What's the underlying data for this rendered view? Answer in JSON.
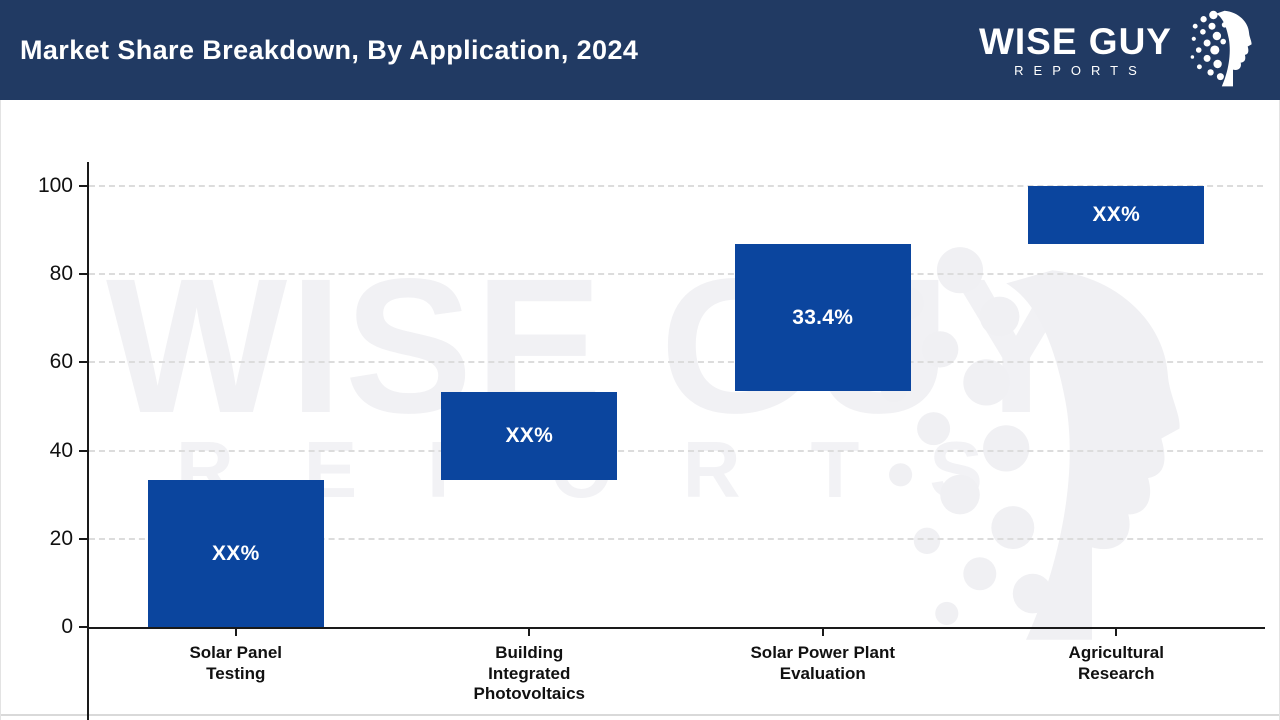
{
  "header": {
    "title": "Market Share Breakdown, By Application, 2024",
    "logo": {
      "line1": "WISE GUY",
      "line2": "REPORTS"
    }
  },
  "watermark": {
    "line1": "WISE GUY",
    "line2": "REPORTS"
  },
  "colors": {
    "header_bg": "#213a63",
    "bar": "#0b459e",
    "bar_label": "#ffffff",
    "axis": "#1a1a1a",
    "gridline": "#dcdcdc",
    "watermark": "#f1f1f4"
  },
  "chart_data": {
    "type": "bar",
    "subtype": "waterfall-floating-segments",
    "title": "Market Share Breakdown, By Application, 2024",
    "xlabel": "",
    "ylabel": "",
    "ylim": [
      0,
      100
    ],
    "yticks": [
      0,
      20,
      40,
      60,
      80,
      100
    ],
    "grid": "horizontal-dashed",
    "legend": "none",
    "categories": [
      "Solar Panel Testing",
      "Building Integrated Photovoltaics",
      "Solar Power Plant Evaluation",
      "Agricultural Research"
    ],
    "category_lines": [
      [
        "Solar Panel",
        "Testing"
      ],
      [
        "Building",
        "Integrated",
        "Photovoltaics"
      ],
      [
        "Solar Power Plant",
        "Evaluation"
      ],
      [
        "Agricultural",
        "Research"
      ]
    ],
    "segments": [
      {
        "category": "Solar Panel Testing",
        "start": 0,
        "end": 33.3,
        "label": "XX%"
      },
      {
        "category": "Building Integrated Photovoltaics",
        "start": 33.4,
        "end": 53.3,
        "label": "XX%"
      },
      {
        "category": "Solar Power Plant Evaluation",
        "start": 53.4,
        "end": 86.8,
        "label": "33.4%"
      },
      {
        "category": "Agricultural Research",
        "start": 86.8,
        "end": 100,
        "label": "XX%"
      }
    ]
  }
}
